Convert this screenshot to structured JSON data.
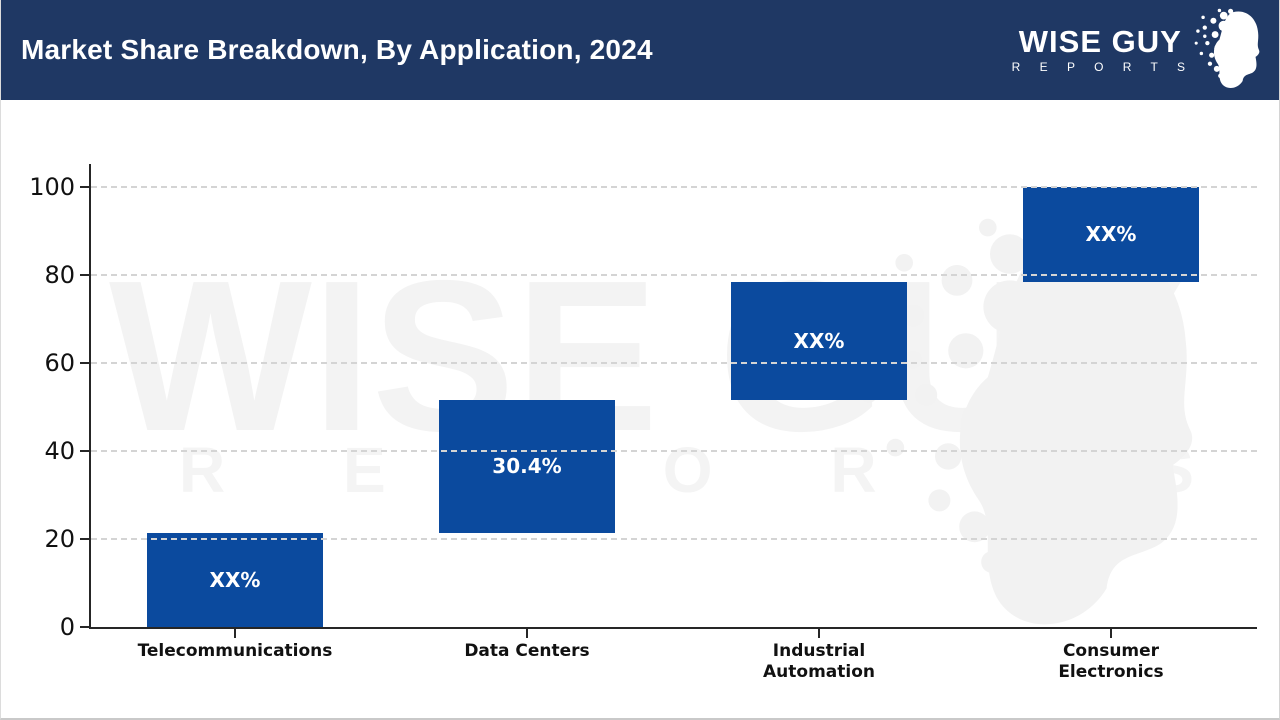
{
  "header": {
    "title": "Market Share Breakdown, By Application, 2024",
    "bg_color": "#1f3864",
    "logo": {
      "line1": "WISE GUY",
      "line2": "R E P O R T S"
    }
  },
  "watermark": {
    "line1": "WISE GUY",
    "line2": "R E P O R T S"
  },
  "chart_data": {
    "type": "bar",
    "subtype": "waterfall (floating segment bars)",
    "title": "Market Share Breakdown, By Application, 2024",
    "categories": [
      "Telecommunications",
      "Data Centers",
      "Industrial Automation",
      "Consumer Electronics"
    ],
    "category_label_lines": [
      [
        "Telecommunications"
      ],
      [
        "Data Centers"
      ],
      [
        "Industrial",
        "Automation"
      ],
      [
        "Consumer",
        "Electronics"
      ]
    ],
    "bars": [
      {
        "category": "Telecommunications",
        "start": 0,
        "end": 21.3,
        "value": 21.3,
        "label": "XX%"
      },
      {
        "category": "Data Centers",
        "start": 21.3,
        "end": 51.7,
        "value": 30.4,
        "label": "30.4%"
      },
      {
        "category": "Industrial Automation",
        "start": 51.7,
        "end": 78.5,
        "value": 26.8,
        "label": "XX%"
      },
      {
        "category": "Consumer Electronics",
        "start": 78.5,
        "end": 100,
        "value": 21.5,
        "label": "XX%"
      }
    ],
    "y_ticks": [
      0,
      20,
      40,
      60,
      80,
      100
    ],
    "ylim": [
      0,
      105
    ],
    "xlabel": "",
    "ylabel": "",
    "bar_color": "#0b4a9e",
    "bar_label_color": "#ffffff",
    "grid": "horizontal dashed, drawn above bars",
    "grid_color": "#d4d4d4",
    "axis_color": "#262626",
    "legend": "none"
  }
}
